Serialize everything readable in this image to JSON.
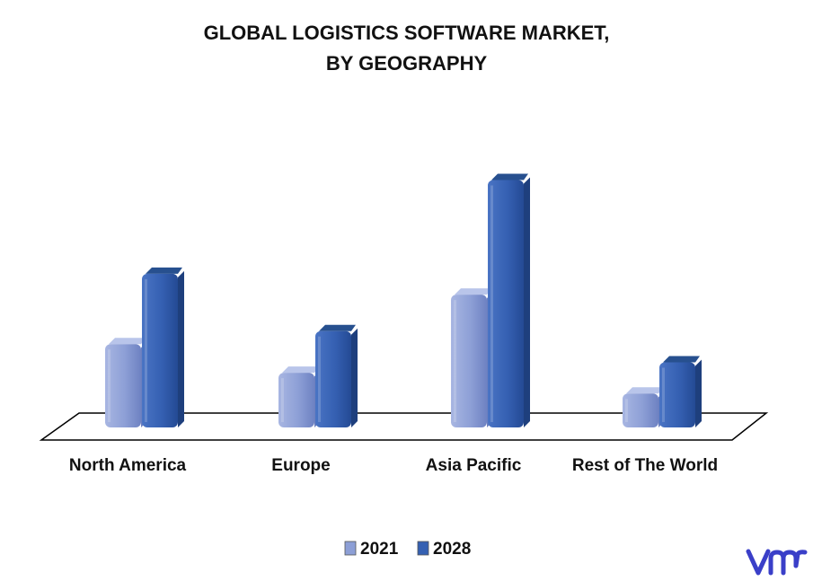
{
  "title_line1": "GLOBAL LOGISTICS SOFTWARE MARKET,",
  "title_line2": "BY GEOGRAPHY",
  "chart_data": {
    "type": "bar",
    "title": "GLOBAL LOGISTICS SOFTWARE MARKET, BY GEOGRAPHY",
    "categories": [
      "North America",
      "Europe",
      "Asia Pacific",
      "Rest of The World"
    ],
    "series": [
      {
        "name": "2021",
        "values": [
          3.2,
          2.1,
          5.1,
          1.3
        ],
        "color": "#8d9fd6"
      },
      {
        "name": "2028",
        "values": [
          5.9,
          3.7,
          9.5,
          2.5
        ],
        "color": "#3560b2"
      }
    ],
    "ylim": [
      0,
      10
    ],
    "grid": false,
    "legend_position": "bottom",
    "xlabel": "",
    "ylabel": ""
  },
  "logo": {
    "name": "vmr-logo",
    "color": "#3a3fc8"
  }
}
